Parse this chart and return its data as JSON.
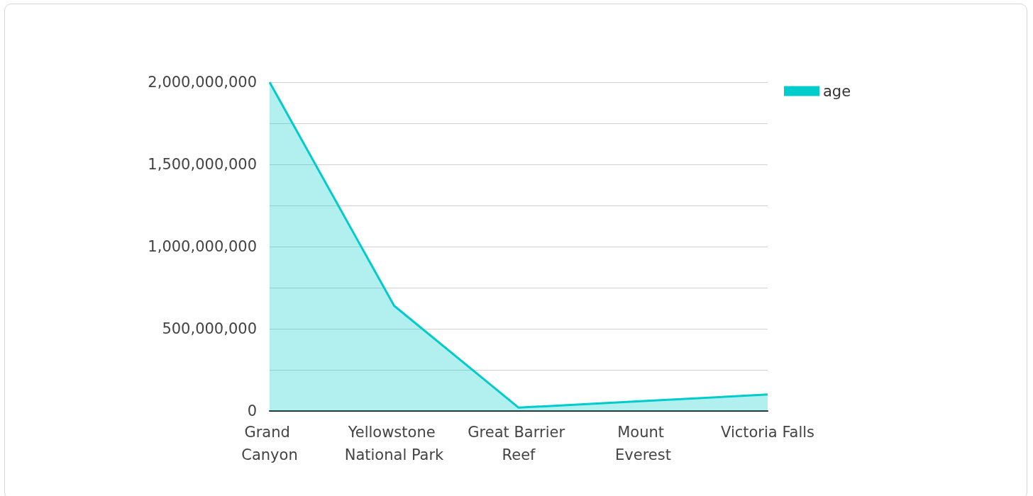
{
  "chart_data": {
    "type": "area",
    "categories": [
      "Grand Canyon",
      "Yellowstone National Park",
      "Great Barrier Reef",
      "Mount Everest",
      "Victoria Falls"
    ],
    "series": [
      {
        "name": "age",
        "color": "#00cccc",
        "values": [
          2000000000,
          640000000,
          20000000,
          60000000,
          100000000
        ]
      }
    ],
    "ylim": [
      0,
      2000000000
    ],
    "yticks": [
      {
        "value": 0,
        "label": "0"
      },
      {
        "value": 250000000,
        "label": null
      },
      {
        "value": 500000000,
        "label": "500,000,000"
      },
      {
        "value": 750000000,
        "label": null
      },
      {
        "value": 1000000000,
        "label": "1,000,000,000"
      },
      {
        "value": 1250000000,
        "label": null
      },
      {
        "value": 1500000000,
        "label": "1,500,000,000"
      },
      {
        "value": 1750000000,
        "label": null
      },
      {
        "value": 2000000000,
        "label": "2,000,000,000"
      }
    ],
    "grid": "y",
    "legend": "top right",
    "marker": "none"
  }
}
